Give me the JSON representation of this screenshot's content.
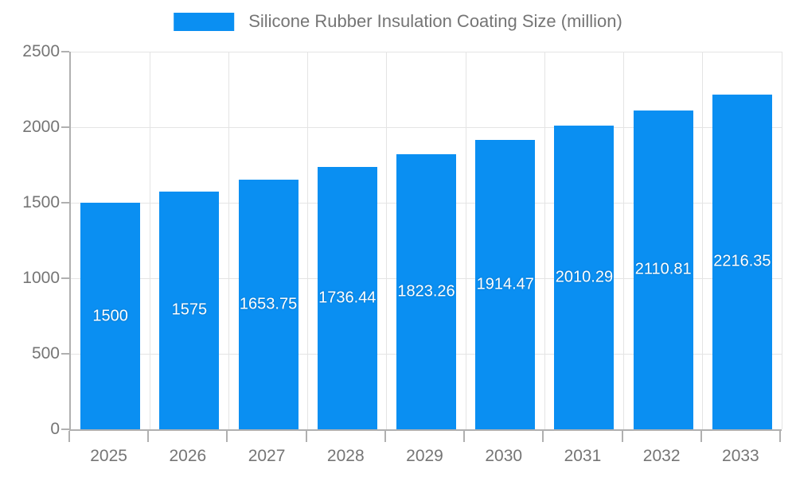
{
  "legend": {
    "label": "Silicone Rubber Insulation Coating Size (million)"
  },
  "colors": {
    "bar": "#0a8ff2",
    "axis_line": "#b0b0b0",
    "grid_line": "#e4e4e4",
    "axis_text": "#757575",
    "bar_label_text": "#ffffff"
  },
  "chart_data": {
    "type": "bar",
    "title": "Silicone Rubber Insulation Coating Size (million)",
    "categories": [
      "2025",
      "2026",
      "2027",
      "2028",
      "2029",
      "2030",
      "2031",
      "2032",
      "2033"
    ],
    "values": [
      1500,
      1575,
      1653.75,
      1736.44,
      1823.26,
      1914.47,
      2010.29,
      2110.81,
      2216.35
    ],
    "value_labels": [
      "1500",
      "1575",
      "1653.75",
      "1736.44",
      "1823.26",
      "1914.47",
      "2010.29",
      "2110.81",
      "2216.35"
    ],
    "xlabel": "",
    "ylabel": "",
    "ylim": [
      0,
      2500
    ],
    "yticks": [
      0,
      500,
      1000,
      1500,
      2000,
      2500
    ],
    "grid": true,
    "legend_position": "top-center",
    "series_name": "Silicone Rubber Insulation Coating Size (million)"
  }
}
